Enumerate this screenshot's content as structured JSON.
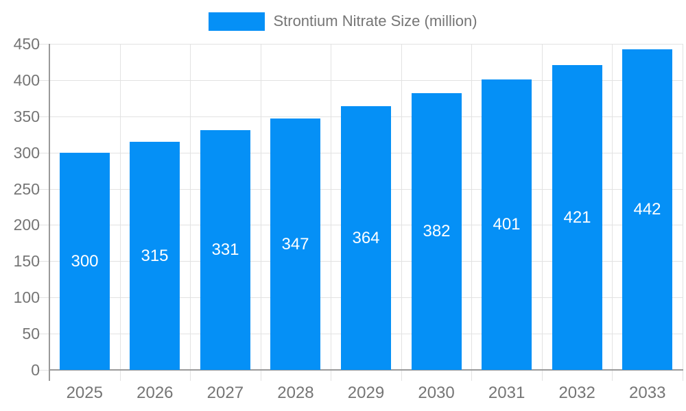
{
  "chart_data": {
    "type": "bar",
    "title": "",
    "series_name": "Strontium Nitrate Size (million)",
    "categories": [
      "2025",
      "2026",
      "2027",
      "2028",
      "2029",
      "2030",
      "2031",
      "2032",
      "2033"
    ],
    "values": [
      300,
      315,
      331,
      347,
      364,
      382,
      401,
      421,
      442
    ],
    "xlabel": "",
    "ylabel": "",
    "ylim": [
      0,
      450
    ],
    "ytick_step": 50,
    "grid": true,
    "legend_position": "top",
    "colors": {
      "bar": "#0590f6",
      "bar_value_text": "#ffffff",
      "axis_text": "#757575",
      "legend_text": "#757575",
      "gridline": "#e2e2e2",
      "axis_line": "#999999"
    }
  }
}
